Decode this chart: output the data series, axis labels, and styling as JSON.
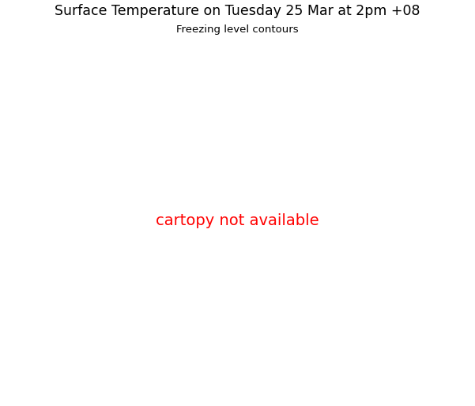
{
  "title": "Surface Temperature on Tuesday 25 Mar at 2pm +08",
  "subtitle": "Freezing level contours",
  "title_fontsize": 12.5,
  "subtitle_fontsize": 9.5,
  "fig_width": 6.01,
  "fig_height": 5.14,
  "dpi": 100,
  "lon_min": 95.0,
  "lon_max": 142.0,
  "lat_min": -11.0,
  "lat_max": 28.0,
  "ocean_color": "#b8c8e8",
  "header_bg": "#ffffff",
  "contour_color": "#ff0000",
  "border_color": "#1a1a1a",
  "hot_color": "#cc0000",
  "warm_color": "#dd4400",
  "highland_color": "#bb6600",
  "coast_color": "#555555"
}
